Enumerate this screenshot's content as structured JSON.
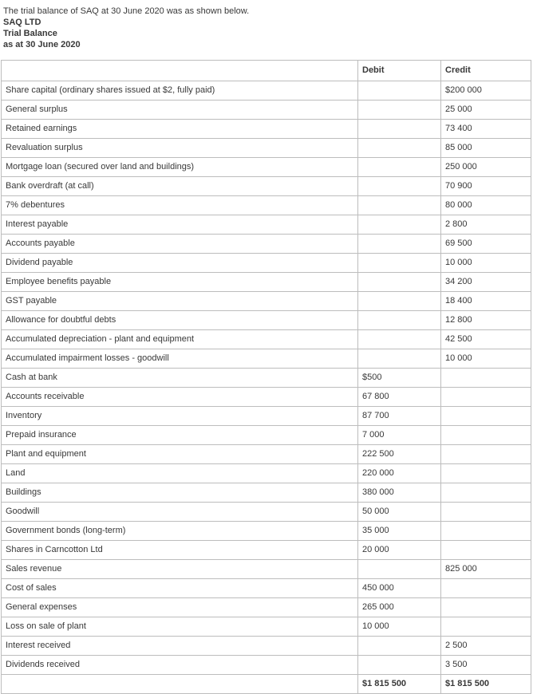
{
  "intro": {
    "paragraph": "The trial balance of SAQ at 30 June 2020 was as shown below."
  },
  "title": {
    "company": "SAQ LTD",
    "report": "Trial Balance",
    "date_line": "as at 30 June 2020"
  },
  "colors": {
    "text": "#383838",
    "border": "#bdbdbd",
    "background": "#ffffff"
  },
  "table": {
    "columns": {
      "account": "",
      "debit": "Debit",
      "credit": "Credit"
    },
    "rows": [
      {
        "account": "Share capital (ordinary shares issued at $2, fully paid)",
        "debit": "",
        "credit": "$200 000"
      },
      {
        "account": "General surplus",
        "debit": "",
        "credit": "25 000"
      },
      {
        "account": "Retained earnings",
        "debit": "",
        "credit": "73 400"
      },
      {
        "account": "Revaluation surplus",
        "debit": "",
        "credit": "85 000"
      },
      {
        "account": "Mortgage loan (secured over land and buildings)",
        "debit": "",
        "credit": "250 000"
      },
      {
        "account": "Bank overdraft (at call)",
        "debit": "",
        "credit": "70 900"
      },
      {
        "account": "7% debentures",
        "debit": "",
        "credit": "80 000"
      },
      {
        "account": "Interest payable",
        "debit": "",
        "credit": "2 800"
      },
      {
        "account": "Accounts payable",
        "debit": "",
        "credit": "69 500"
      },
      {
        "account": "Dividend payable",
        "debit": "",
        "credit": "10 000"
      },
      {
        "account": "Employee benefits payable",
        "debit": "",
        "credit": "34 200"
      },
      {
        "account": "GST payable",
        "debit": "",
        "credit": "18 400"
      },
      {
        "account": "Allowance for doubtful debts",
        "debit": "",
        "credit": "12 800"
      },
      {
        "account": "Accumulated depreciation - plant and equipment",
        "debit": "",
        "credit": "42 500"
      },
      {
        "account": "Accumulated impairment losses - goodwill",
        "debit": "",
        "credit": "10 000"
      },
      {
        "account": "Cash at bank",
        "debit": "$500",
        "credit": ""
      },
      {
        "account": "Accounts receivable",
        "debit": "67 800",
        "credit": ""
      },
      {
        "account": "Inventory",
        "debit": "87 700",
        "credit": ""
      },
      {
        "account": "Prepaid insurance",
        "debit": "7 000",
        "credit": ""
      },
      {
        "account": "Plant and equipment",
        "debit": "222 500",
        "credit": ""
      },
      {
        "account": "Land",
        "debit": "220 000",
        "credit": ""
      },
      {
        "account": "Buildings",
        "debit": "380 000",
        "credit": ""
      },
      {
        "account": "Goodwill",
        "debit": "50 000",
        "credit": ""
      },
      {
        "account": "Government bonds (long-term)",
        "debit": "35 000",
        "credit": ""
      },
      {
        "account": "Shares in Carncotton Ltd",
        "debit": "20 000",
        "credit": ""
      },
      {
        "account": "Sales revenue",
        "debit": "",
        "credit": "825 000"
      },
      {
        "account": "Cost of sales",
        "debit": "450 000",
        "credit": ""
      },
      {
        "account": "General expenses",
        "debit": "265 000",
        "credit": ""
      },
      {
        "account": "Loss on sale of plant",
        "debit": "10 000",
        "credit": ""
      },
      {
        "account": "Interest received",
        "debit": "",
        "credit": "2 500"
      },
      {
        "account": "Dividends received",
        "debit": "",
        "credit": "3 500"
      }
    ],
    "totals": {
      "account": "",
      "debit": "$1 815 500",
      "credit": "$1 815 500"
    }
  }
}
